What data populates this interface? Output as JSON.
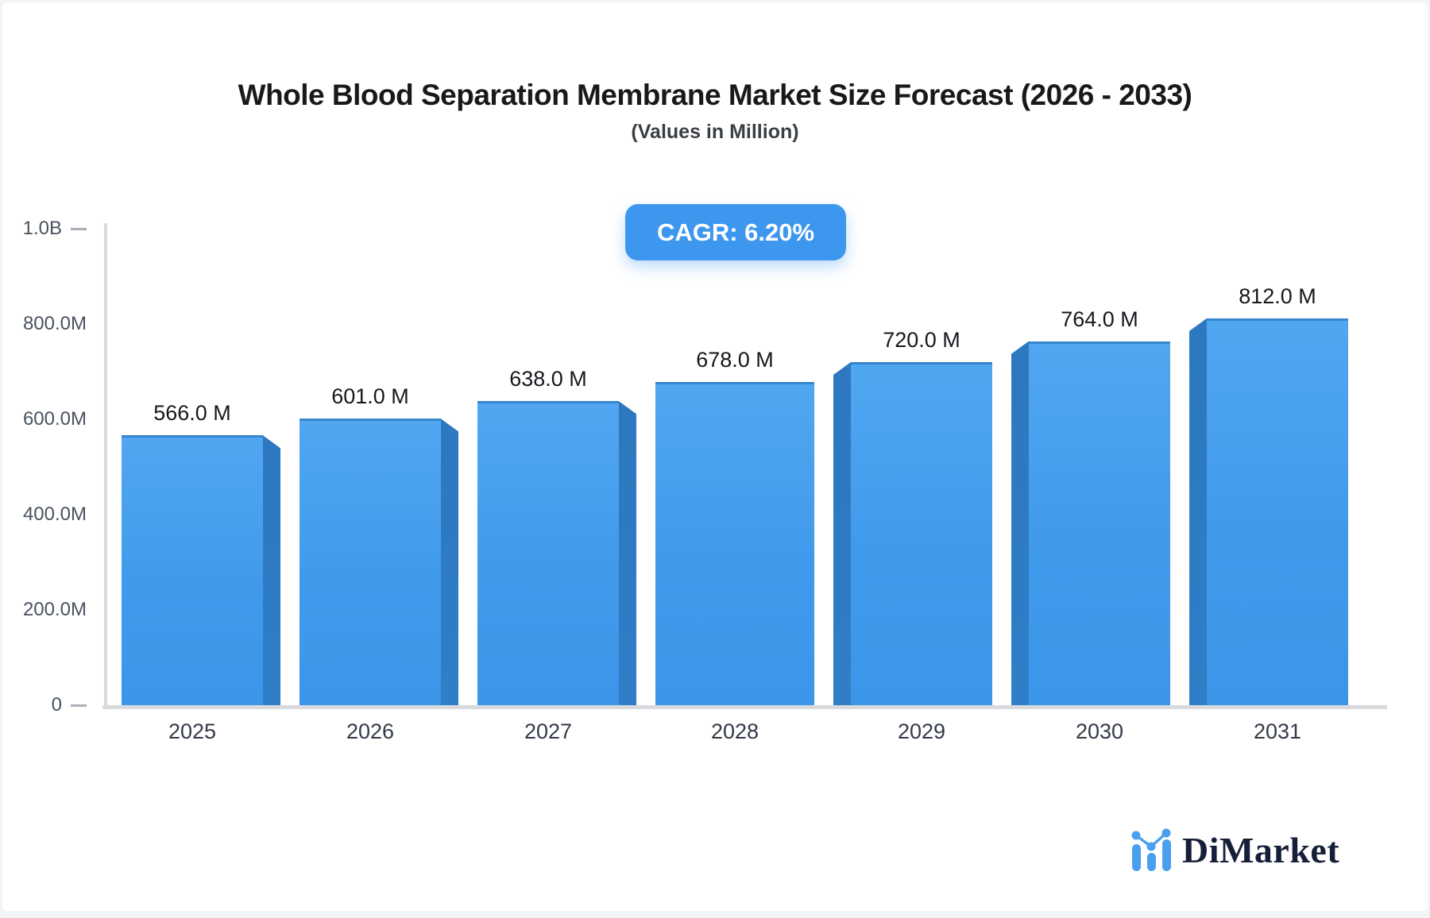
{
  "header": {
    "title": "Whole Blood Separation Membrane Market Size Forecast (2026 - 2033)",
    "subtitle": "(Values in Million)",
    "cagr_badge": "CAGR: 6.20%"
  },
  "logo": {
    "name": "DiMarket",
    "icon": "bar-chart-logo-icon"
  },
  "colors": {
    "accent": "#3e97ee",
    "badge_bg": "#3e97ee",
    "bar_face_top": "#51a6f0",
    "bar_face_bottom": "#3b96e9",
    "bar_side": "#2e7cc3",
    "axis_line": "#d8dade",
    "y_label": "#49525f",
    "x_label": "#333a46",
    "value_label": "#15181d"
  },
  "chart_data": {
    "type": "bar",
    "title": "Whole Blood Separation Membrane Market Size Forecast (2026 - 2033)",
    "subtitle": "(Values in Million)",
    "categories": [
      "2025",
      "2026",
      "2027",
      "2028",
      "2029",
      "2030",
      "2031"
    ],
    "values": [
      566,
      601,
      638,
      678,
      720,
      764,
      812
    ],
    "value_labels": [
      "566.0 M",
      "601.0 M",
      "638.0 M",
      "678.0 M",
      "720.0 M",
      "764.0 M",
      "812.0 M"
    ],
    "unit": "Million",
    "cagr": "6.20%",
    "ylim": [
      0,
      1000
    ],
    "y_ticks": [
      {
        "label": "1.0B",
        "value": 1000,
        "tick": true
      },
      {
        "label": "800.0M",
        "value": 800,
        "tick": false
      },
      {
        "label": "600.0M",
        "value": 600,
        "tick": false
      },
      {
        "label": "400.0M",
        "value": 400,
        "tick": false
      },
      {
        "label": "200.0M",
        "value": 200,
        "tick": false
      },
      {
        "label": "0",
        "value": 0,
        "tick": true
      }
    ],
    "grid": false,
    "legend": "none",
    "style": "3d-extruded-bars"
  }
}
